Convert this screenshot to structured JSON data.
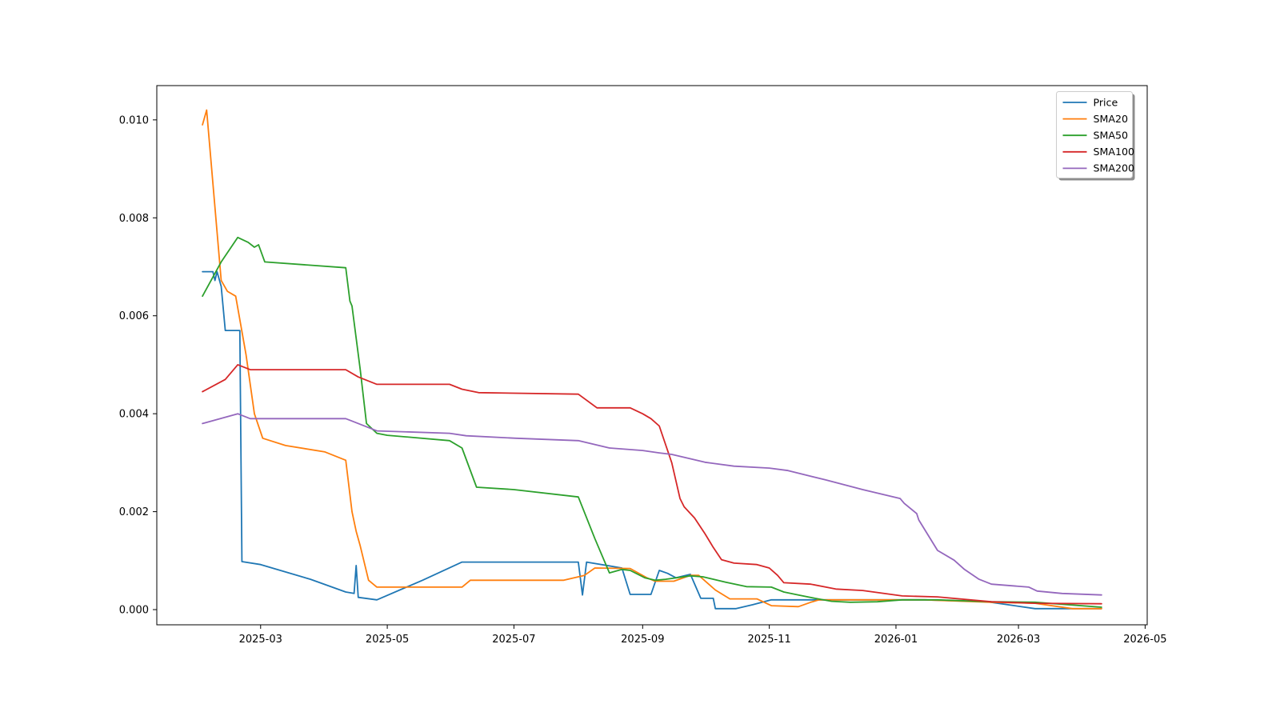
{
  "figure": {
    "background": "#ffffff",
    "plot_border_color": "#000000"
  },
  "chart_data": {
    "type": "line",
    "title": "",
    "xlabel": "",
    "ylabel": "",
    "grid": false,
    "x_domain": [
      "2025-01-10",
      "2026-05-02"
    ],
    "ylim": [
      -0.00031,
      0.0107
    ],
    "x_ticks": [
      {
        "label": "2025-03",
        "date": "2025-03-01"
      },
      {
        "label": "2025-05",
        "date": "2025-05-01"
      },
      {
        "label": "2025-07",
        "date": "2025-07-01"
      },
      {
        "label": "2025-09",
        "date": "2025-09-01"
      },
      {
        "label": "2025-11",
        "date": "2025-11-01"
      },
      {
        "label": "2026-01",
        "date": "2026-01-01"
      },
      {
        "label": "2026-03",
        "date": "2026-03-01"
      },
      {
        "label": "2026-05",
        "date": "2026-05-01"
      }
    ],
    "y_ticks": [
      {
        "label": "0.000",
        "value": 0.0
      },
      {
        "label": "0.002",
        "value": 0.002
      },
      {
        "label": "0.004",
        "value": 0.004
      },
      {
        "label": "0.006",
        "value": 0.006
      },
      {
        "label": "0.008",
        "value": 0.008
      },
      {
        "label": "0.010",
        "value": 0.01
      }
    ],
    "legend": {
      "position": "upper right",
      "shadow": true,
      "border_color": "#cccccc",
      "shadow_color": "#8c8c8c",
      "entries": [
        "Price",
        "SMA20",
        "SMA50",
        "SMA100",
        "SMA200"
      ]
    },
    "series": [
      {
        "name": "Price",
        "color": "#1f77b4",
        "points": [
          [
            "2025-02-01",
            0.0069
          ],
          [
            "2025-02-06",
            0.0069
          ],
          [
            "2025-02-07",
            0.00672
          ],
          [
            "2025-02-08",
            0.0069
          ],
          [
            "2025-02-10",
            0.0066
          ],
          [
            "2025-02-12",
            0.0057
          ],
          [
            "2025-02-19",
            0.0057
          ],
          [
            "2025-02-20",
            0.00098
          ],
          [
            "2025-03-01",
            0.00092
          ],
          [
            "2025-03-25",
            0.00062
          ],
          [
            "2025-04-11",
            0.00036
          ],
          [
            "2025-04-15",
            0.00033
          ],
          [
            "2025-04-16",
            0.0009
          ],
          [
            "2025-04-17",
            0.00025
          ],
          [
            "2025-04-26",
            0.0002
          ],
          [
            "2025-05-18",
            0.0006
          ],
          [
            "2025-06-06",
            0.00097
          ],
          [
            "2025-08-01",
            0.00097
          ],
          [
            "2025-08-03",
            0.0003
          ],
          [
            "2025-08-05",
            0.00097
          ],
          [
            "2025-08-22",
            0.00085
          ],
          [
            "2025-08-26",
            0.00031
          ],
          [
            "2025-09-05",
            0.00031
          ],
          [
            "2025-09-09",
            0.0008
          ],
          [
            "2025-09-13",
            0.00074
          ],
          [
            "2025-09-17",
            0.00065
          ],
          [
            "2025-09-24",
            0.00072
          ],
          [
            "2025-09-29",
            0.00023
          ],
          [
            "2025-10-05",
            0.00023
          ],
          [
            "2025-10-06",
            2e-05
          ],
          [
            "2025-10-16",
            2e-05
          ],
          [
            "2025-10-24",
            0.0001
          ],
          [
            "2025-11-02",
            0.0002
          ],
          [
            "2026-01-15",
            0.0002
          ],
          [
            "2026-02-14",
            0.00016
          ],
          [
            "2026-03-09",
            2e-05
          ],
          [
            "2026-04-10",
            2e-05
          ]
        ]
      },
      {
        "name": "SMA20",
        "color": "#ff7f0e",
        "points": [
          [
            "2025-02-01",
            0.0099
          ],
          [
            "2025-02-03",
            0.0102
          ],
          [
            "2025-02-10",
            0.00672
          ],
          [
            "2025-02-13",
            0.0065
          ],
          [
            "2025-02-17",
            0.0064
          ],
          [
            "2025-02-22",
            0.0052
          ],
          [
            "2025-02-26",
            0.004
          ],
          [
            "2025-03-02",
            0.0035
          ],
          [
            "2025-03-13",
            0.00335
          ],
          [
            "2025-04-01",
            0.00322
          ],
          [
            "2025-04-11",
            0.00305
          ],
          [
            "2025-04-14",
            0.002
          ],
          [
            "2025-04-16",
            0.0016
          ],
          [
            "2025-04-18",
            0.0013
          ],
          [
            "2025-04-22",
            0.0006
          ],
          [
            "2025-04-26",
            0.00046
          ],
          [
            "2025-06-06",
            0.00046
          ],
          [
            "2025-06-10",
            0.0006
          ],
          [
            "2025-07-25",
            0.0006
          ],
          [
            "2025-08-04",
            0.0007
          ],
          [
            "2025-08-09",
            0.00085
          ],
          [
            "2025-08-26",
            0.00084
          ],
          [
            "2025-09-03",
            0.00065
          ],
          [
            "2025-09-07",
            0.00058
          ],
          [
            "2025-09-16",
            0.00058
          ],
          [
            "2025-09-24",
            0.0007
          ],
          [
            "2025-09-28",
            0.0007
          ],
          [
            "2025-10-06",
            0.0004
          ],
          [
            "2025-10-13",
            0.00022
          ],
          [
            "2025-10-26",
            0.00022
          ],
          [
            "2025-11-02",
            8e-05
          ],
          [
            "2025-11-15",
            6e-05
          ],
          [
            "2025-11-21",
            0.00015
          ],
          [
            "2025-11-25",
            0.0002
          ],
          [
            "2026-01-15",
            0.0002
          ],
          [
            "2026-02-16",
            0.00015
          ],
          [
            "2026-03-09",
            0.00013
          ],
          [
            "2026-03-27",
            2e-05
          ],
          [
            "2026-04-10",
            2e-05
          ]
        ]
      },
      {
        "name": "SMA50",
        "color": "#2ca02c",
        "points": [
          [
            "2025-02-01",
            0.0064
          ],
          [
            "2025-02-10",
            0.0071
          ],
          [
            "2025-02-18",
            0.0076
          ],
          [
            "2025-02-23",
            0.0075
          ],
          [
            "2025-02-26",
            0.0074
          ],
          [
            "2025-02-28",
            0.00745
          ],
          [
            "2025-03-03",
            0.0071
          ],
          [
            "2025-04-11",
            0.00698
          ],
          [
            "2025-04-13",
            0.0063
          ],
          [
            "2025-04-14",
            0.0062
          ],
          [
            "2025-04-18",
            0.0049
          ],
          [
            "2025-04-21",
            0.0038
          ],
          [
            "2025-04-26",
            0.0036
          ],
          [
            "2025-05-01",
            0.00356
          ],
          [
            "2025-05-31",
            0.00345
          ],
          [
            "2025-06-06",
            0.0033
          ],
          [
            "2025-06-13",
            0.0025
          ],
          [
            "2025-07-01",
            0.00245
          ],
          [
            "2025-08-01",
            0.0023
          ],
          [
            "2025-08-09",
            0.00145
          ],
          [
            "2025-08-16",
            0.00075
          ],
          [
            "2025-08-22",
            0.00082
          ],
          [
            "2025-08-26",
            0.0008
          ],
          [
            "2025-09-02",
            0.00065
          ],
          [
            "2025-09-07",
            0.0006
          ],
          [
            "2025-09-12",
            0.00062
          ],
          [
            "2025-09-24",
            0.00069
          ],
          [
            "2025-09-30",
            0.00067
          ],
          [
            "2025-10-11",
            0.00056
          ],
          [
            "2025-10-21",
            0.00047
          ],
          [
            "2025-11-02",
            0.00046
          ],
          [
            "2025-11-08",
            0.00036
          ],
          [
            "2025-11-15",
            0.0003
          ],
          [
            "2025-11-23",
            0.00023
          ],
          [
            "2025-12-01",
            0.00017
          ],
          [
            "2025-12-10",
            0.00015
          ],
          [
            "2025-12-23",
            0.00016
          ],
          [
            "2026-01-04",
            0.0002
          ],
          [
            "2026-01-21",
            0.0002
          ],
          [
            "2026-02-16",
            0.00016
          ],
          [
            "2026-03-09",
            0.00015
          ],
          [
            "2026-04-10",
            5e-05
          ]
        ]
      },
      {
        "name": "SMA100",
        "color": "#d62728",
        "points": [
          [
            "2025-02-01",
            0.00445
          ],
          [
            "2025-02-12",
            0.0047
          ],
          [
            "2025-02-18",
            0.005
          ],
          [
            "2025-02-24",
            0.0049
          ],
          [
            "2025-04-11",
            0.0049
          ],
          [
            "2025-04-17",
            0.00475
          ],
          [
            "2025-04-26",
            0.0046
          ],
          [
            "2025-05-31",
            0.0046
          ],
          [
            "2025-06-06",
            0.0045
          ],
          [
            "2025-06-14",
            0.00443
          ],
          [
            "2025-08-01",
            0.0044
          ],
          [
            "2025-08-10",
            0.00412
          ],
          [
            "2025-08-26",
            0.00412
          ],
          [
            "2025-09-01",
            0.004
          ],
          [
            "2025-09-05",
            0.0039
          ],
          [
            "2025-09-09",
            0.00375
          ],
          [
            "2025-09-15",
            0.003
          ],
          [
            "2025-09-19",
            0.00227
          ],
          [
            "2025-09-21",
            0.0021
          ],
          [
            "2025-09-26",
            0.00187
          ],
          [
            "2025-10-01",
            0.00155
          ],
          [
            "2025-10-05",
            0.00127
          ],
          [
            "2025-10-09",
            0.00102
          ],
          [
            "2025-10-15",
            0.00095
          ],
          [
            "2025-10-26",
            0.00092
          ],
          [
            "2025-11-01",
            0.00085
          ],
          [
            "2025-11-05",
            0.0007
          ],
          [
            "2025-11-08",
            0.00055
          ],
          [
            "2025-11-21",
            0.00052
          ],
          [
            "2025-12-03",
            0.00042
          ],
          [
            "2025-12-16",
            0.00039
          ],
          [
            "2025-12-23",
            0.00035
          ],
          [
            "2026-01-04",
            0.00028
          ],
          [
            "2026-01-21",
            0.00026
          ],
          [
            "2026-02-16",
            0.00016
          ],
          [
            "2026-03-09",
            0.00013
          ],
          [
            "2026-04-10",
            0.00012
          ]
        ]
      },
      {
        "name": "SMA200",
        "color": "#9467bd",
        "points": [
          [
            "2025-02-01",
            0.0038
          ],
          [
            "2025-02-18",
            0.004
          ],
          [
            "2025-02-24",
            0.0039
          ],
          [
            "2025-04-11",
            0.0039
          ],
          [
            "2025-04-14",
            0.00385
          ],
          [
            "2025-04-26",
            0.00365
          ],
          [
            "2025-05-31",
            0.0036
          ],
          [
            "2025-06-08",
            0.00355
          ],
          [
            "2025-07-02",
            0.0035
          ],
          [
            "2025-08-01",
            0.00345
          ],
          [
            "2025-08-16",
            0.0033
          ],
          [
            "2025-09-01",
            0.00325
          ],
          [
            "2025-09-09",
            0.0032
          ],
          [
            "2025-09-15",
            0.00317
          ],
          [
            "2025-10-01",
            0.00301
          ],
          [
            "2025-10-15",
            0.00293
          ],
          [
            "2025-11-01",
            0.00289
          ],
          [
            "2025-11-10",
            0.00284
          ],
          [
            "2025-11-28",
            0.00265
          ],
          [
            "2025-12-16",
            0.00245
          ],
          [
            "2026-01-03",
            0.00227
          ],
          [
            "2026-01-05",
            0.00217
          ],
          [
            "2026-01-11",
            0.00196
          ],
          [
            "2026-01-12",
            0.00183
          ],
          [
            "2026-01-21",
            0.00121
          ],
          [
            "2026-01-29",
            0.00101
          ],
          [
            "2026-02-03",
            0.00082
          ],
          [
            "2026-02-10",
            0.00062
          ],
          [
            "2026-02-16",
            0.00052
          ],
          [
            "2026-03-06",
            0.00046
          ],
          [
            "2026-03-10",
            0.00038
          ],
          [
            "2026-03-22",
            0.00033
          ],
          [
            "2026-04-10",
            0.0003
          ]
        ]
      }
    ]
  }
}
